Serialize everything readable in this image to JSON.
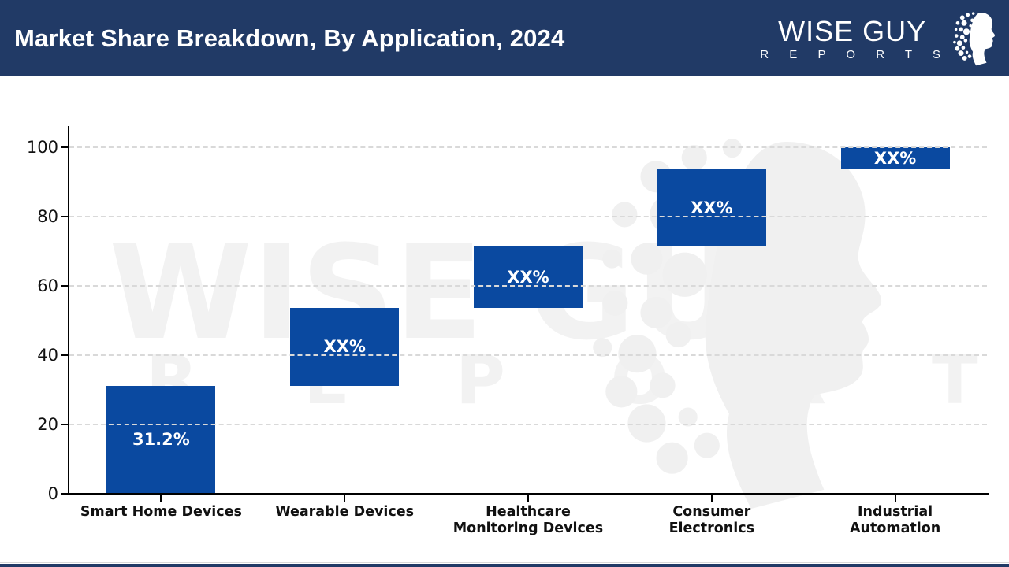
{
  "header": {
    "title": "Market Share Breakdown, By Application, 2024",
    "logo": {
      "name_line": "WISE GUY",
      "reports_line": "R E P O R T S"
    }
  },
  "watermark": {
    "name_line": "WISE GUY",
    "reports_line": "R E P O R T S"
  },
  "colors": {
    "header_bg": "#213A66",
    "bar": "#0A49A0",
    "grid": "#D9D9D9",
    "axis": "#000000",
    "bar_label": "#FFFFFF",
    "watermark": "#F2F2F2",
    "footer": "#213A66"
  },
  "chart_data": {
    "type": "bar",
    "subtype": "waterfall",
    "title": "Market Share Breakdown, By Application, 2024",
    "xlabel": "",
    "ylabel": "",
    "ylim": [
      0,
      100
    ],
    "yticks": [
      0,
      20,
      40,
      60,
      80,
      100
    ],
    "grid": "horizontal-dashed",
    "legend": "none",
    "categories": [
      "Smart Home Devices",
      "Wearable Devices",
      "Healthcare\nMonitoring Devices",
      "Consumer\nElectronics",
      "Industrial\nAutomation"
    ],
    "bars": [
      {
        "category": "Smart Home Devices",
        "start": 0,
        "end": 31.2,
        "label": "31.2%"
      },
      {
        "category": "Wearable Devices",
        "start": 31.2,
        "end": 53.6,
        "label": "XX%"
      },
      {
        "category": "Healthcare Monitoring Devices",
        "start": 53.6,
        "end": 71.4,
        "label": "XX%"
      },
      {
        "category": "Consumer Electronics",
        "start": 71.4,
        "end": 93.6,
        "label": "XX%"
      },
      {
        "category": "Industrial Automation",
        "start": 93.6,
        "end": 100,
        "label": "XX%"
      }
    ]
  }
}
